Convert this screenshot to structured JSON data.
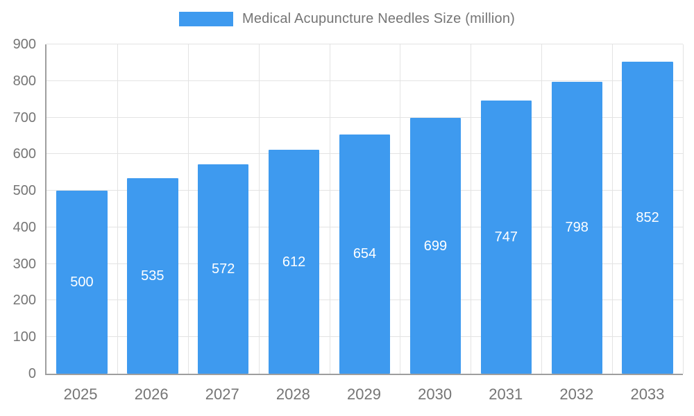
{
  "colors": {
    "bar": "#3E9AEF",
    "value_label": "#FFFFFF",
    "axis_text": "#757575",
    "gridline": "#E3E3E3",
    "axis_line": "#9E9E9E"
  },
  "legend": {
    "title": "Medical Acupuncture Needles Size (million)"
  },
  "chart_data": {
    "type": "bar",
    "title": "Medical Acupuncture Needles Size (million)",
    "categories": [
      "2025",
      "2026",
      "2027",
      "2028",
      "2029",
      "2030",
      "2031",
      "2032",
      "2033"
    ],
    "values": [
      500,
      535,
      572,
      612,
      654,
      699,
      747,
      798,
      852
    ],
    "xlabel": "",
    "ylabel": "",
    "ylim": [
      0,
      900
    ],
    "ytick_step": 100,
    "yticks": [
      0,
      100,
      200,
      300,
      400,
      500,
      600,
      700,
      800,
      900
    ],
    "grid": "both",
    "legend_position": "top",
    "value_labels": "inside-center"
  }
}
